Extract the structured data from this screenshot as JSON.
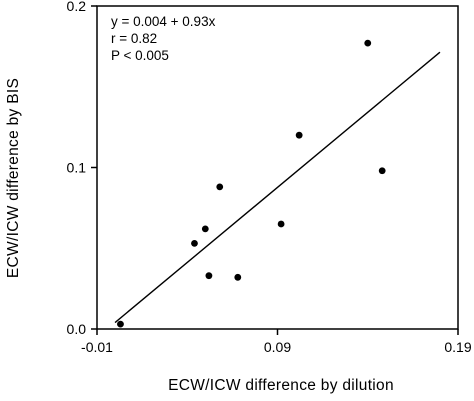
{
  "chart_data": {
    "type": "scatter",
    "title": "",
    "xlabel": "ECW/ICW difference by dilution",
    "ylabel": "ECW/ICW difference by BIS",
    "xlim": [
      -0.01,
      0.19
    ],
    "ylim": [
      0.0,
      0.2
    ],
    "x_ticks": [
      -0.01,
      0.09,
      0.19
    ],
    "x_tick_labels": [
      "-0.01",
      "0.09",
      "0.19"
    ],
    "y_ticks": [
      0.0,
      0.1,
      0.2
    ],
    "y_tick_labels": [
      "0.0",
      "0.1",
      "0.2"
    ],
    "grid": false,
    "legend": "none",
    "series": [
      {
        "points": [
          {
            "x": 0.003,
            "y": 0.003
          },
          {
            "x": 0.044,
            "y": 0.053
          },
          {
            "x": 0.05,
            "y": 0.062
          },
          {
            "x": 0.052,
            "y": 0.033
          },
          {
            "x": 0.058,
            "y": 0.088
          },
          {
            "x": 0.068,
            "y": 0.032
          },
          {
            "x": 0.092,
            "y": 0.065
          },
          {
            "x": 0.102,
            "y": 0.12
          },
          {
            "x": 0.14,
            "y": 0.177
          },
          {
            "x": 0.148,
            "y": 0.098
          }
        ]
      }
    ],
    "fit_line": {
      "intercept": 0.004,
      "slope": 0.93,
      "x_start": 0.0,
      "x_end": 0.18
    },
    "annotations": [
      "y = 0.004 + 0.93x",
      "r = 0.82",
      "P < 0.005"
    ]
  }
}
